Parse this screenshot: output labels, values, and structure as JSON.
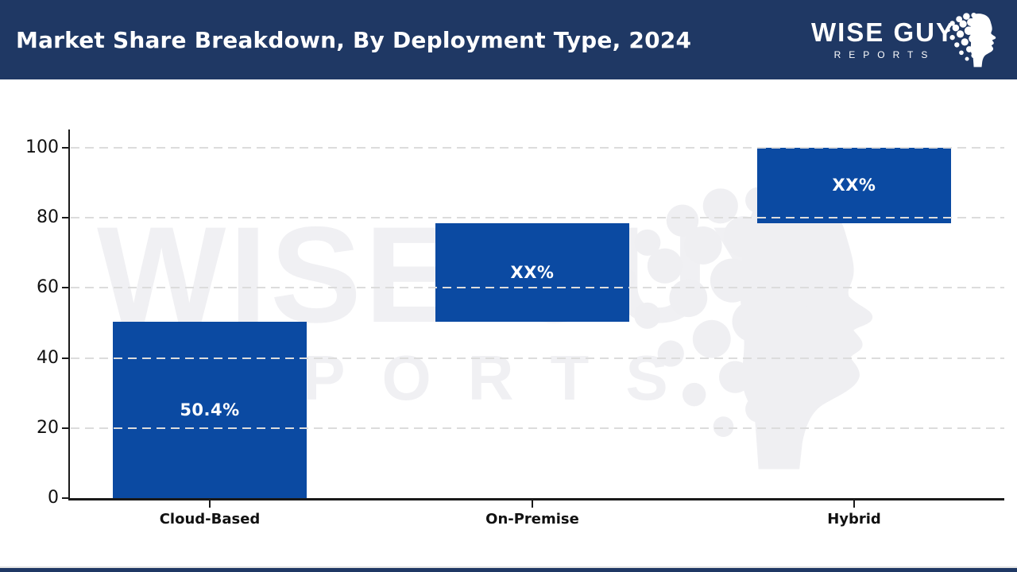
{
  "header": {
    "title": "Market Share Breakdown, By Deployment Type, 2024",
    "logo": {
      "line1": "WISE GUY",
      "line2": "REPORTS"
    }
  },
  "watermark": {
    "line1": "WISE GUY",
    "line2": "REPORTS"
  },
  "chart_data": {
    "type": "bar",
    "subtype": "waterfall",
    "title": "Market Share Breakdown, By Deployment Type, 2024",
    "categories": [
      "Cloud-Based",
      "On-Premise",
      "Hybrid"
    ],
    "segments": [
      {
        "category": "Cloud-Based",
        "start": 0,
        "end": 50.4,
        "label": "50.4%"
      },
      {
        "category": "On-Premise",
        "start": 50.4,
        "end": 78.5,
        "label": "XX%"
      },
      {
        "category": "Hybrid",
        "start": 78.5,
        "end": 100,
        "label": "XX%"
      }
    ],
    "xlabel": "",
    "ylabel": "",
    "yticks": [
      0,
      20,
      40,
      60,
      80,
      100
    ],
    "ylim": [
      0,
      105
    ],
    "grid": "horizontal-dashed",
    "legend": "none",
    "bar_color": "#0b4aa2",
    "bar_label_color": "#ffffff"
  },
  "colors": {
    "header_bg": "#1f3864",
    "bar": "#0b4aa2",
    "axis": "#1a1a1a",
    "gridline": "#dcdcdc",
    "watermark": "#f0f0f3",
    "footer_bg": "#1f3864"
  }
}
